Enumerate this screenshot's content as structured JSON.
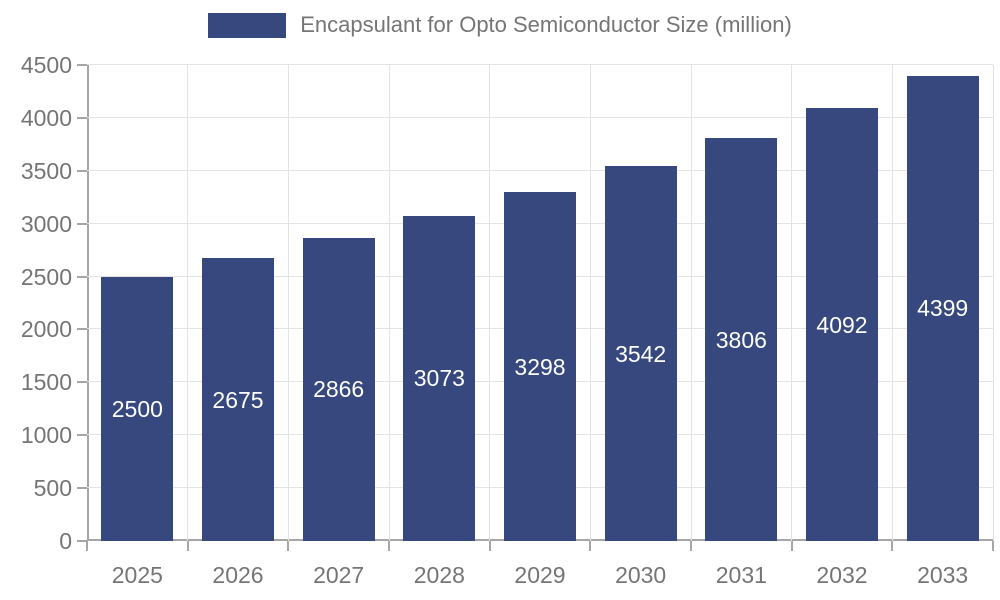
{
  "chart_data": {
    "type": "bar",
    "title": "",
    "xlabel": "",
    "ylabel": "",
    "categories": [
      "2025",
      "2026",
      "2027",
      "2028",
      "2029",
      "2030",
      "2031",
      "2032",
      "2033"
    ],
    "series": [
      {
        "name": "Encapsulant for Opto Semiconductor Size (million)",
        "values": [
          2500,
          2675,
          2866,
          3073,
          3298,
          3542,
          3806,
          4092,
          4399
        ]
      }
    ],
    "bar_value_labels": [
      "2500",
      "2675",
      "2866",
      "3073",
      "3298",
      "3542",
      "3806",
      "4092",
      "4399"
    ],
    "ylim": [
      0,
      4500
    ],
    "ytick_step": 500,
    "y_ticks": [
      "0",
      "500",
      "1000",
      "1500",
      "2000",
      "2500",
      "3000",
      "3500",
      "4000",
      "4500"
    ],
    "grid": true,
    "legend_position": "top-center",
    "colors": {
      "bar": "#36487e",
      "bar_label": "#ffffff",
      "axis_text": "#757575",
      "axis_line": "#a6a6a6",
      "gridline": "#e3e3e3",
      "background": "#ffffff"
    }
  }
}
